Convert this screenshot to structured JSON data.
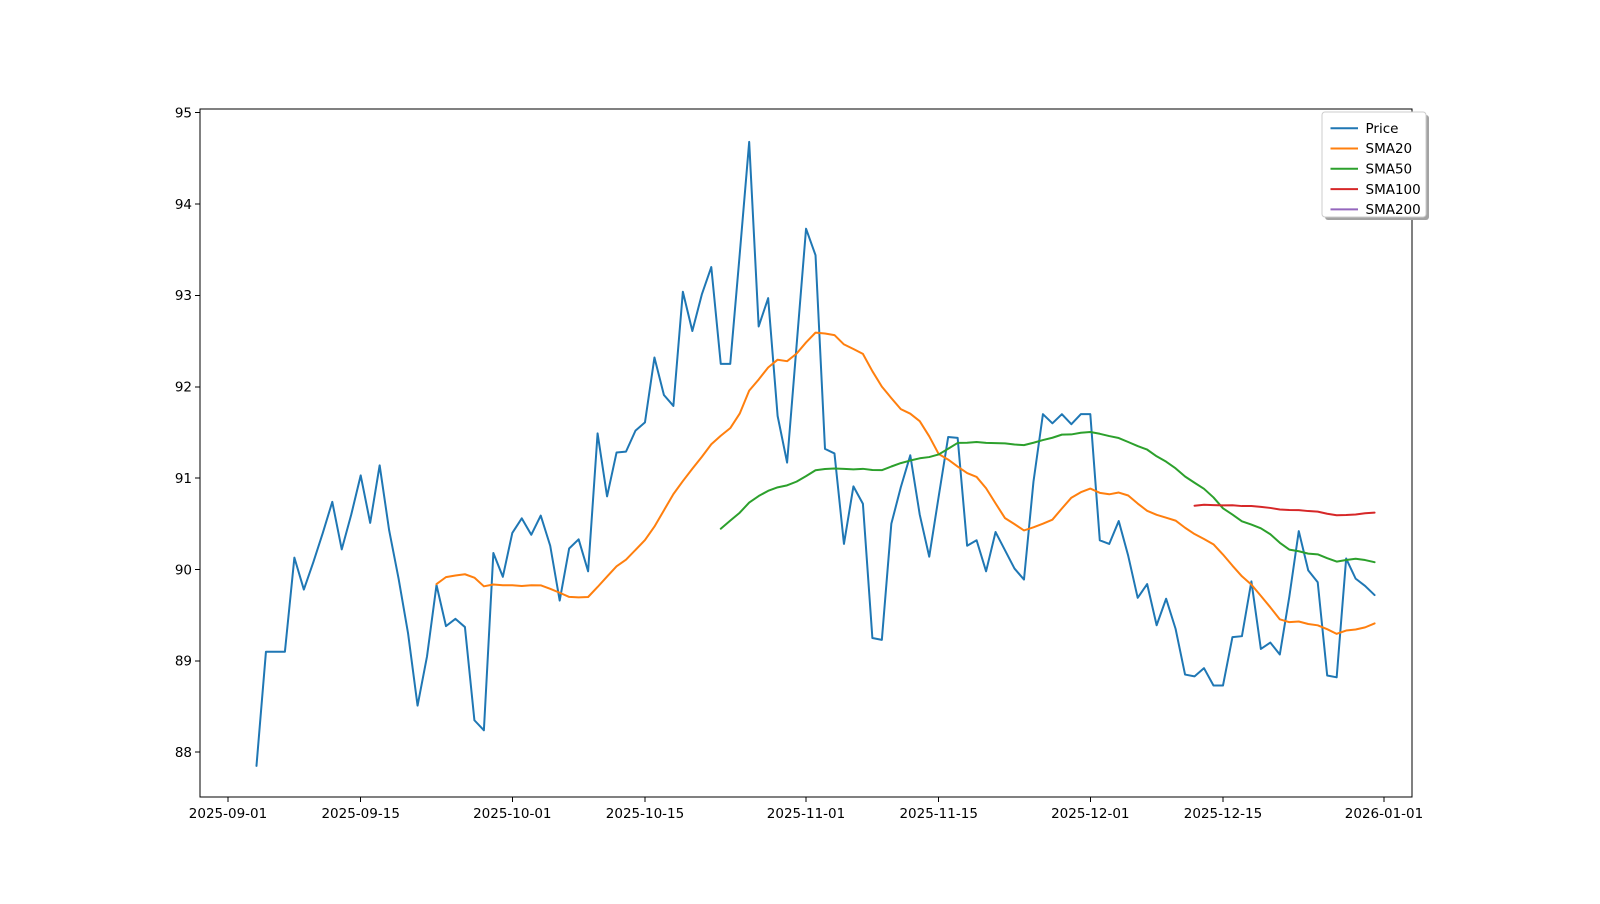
{
  "figure": {
    "background": "#ffffff",
    "axes_edge_color": "#000000",
    "tick_color": "#000000",
    "text_color": "#000000"
  },
  "chart_data": {
    "type": "line",
    "title": "",
    "xlabel": "",
    "ylabel": "",
    "grid": false,
    "legend_position": "upper right",
    "legend_frame_color": "#cccccc",
    "legend_shadow_color": "#a3a3a3",
    "x_start": "2025-09-04",
    "x_end": "2025-12-31",
    "x_freq": "daily",
    "offset_reference": "2025-09-01",
    "xlim_days": [
      -2.96,
      124.95
    ],
    "ylim": [
      87.51,
      95.04
    ],
    "y_ticks": [
      88,
      89,
      90,
      91,
      92,
      93,
      94,
      95
    ],
    "x_tick_labels": [
      "2025-09-01",
      "2025-09-15",
      "2025-10-01",
      "2025-10-15",
      "2025-11-01",
      "2025-11-15",
      "2025-12-01",
      "2025-12-15",
      "2026-01-01"
    ],
    "series": [
      {
        "name": "Price",
        "color": "#1f77b4",
        "values": [
          87.85,
          89.1,
          89.1,
          89.1,
          90.13,
          89.78,
          90.08,
          90.4,
          90.74,
          90.22,
          90.6,
          91.03,
          90.51,
          91.14,
          90.43,
          89.9,
          89.3,
          88.51,
          89.05,
          89.83,
          89.38,
          89.46,
          89.37,
          88.35,
          88.24,
          90.18,
          89.92,
          90.4,
          90.56,
          90.38,
          90.59,
          90.26,
          89.66,
          90.23,
          90.33,
          89.98,
          91.49,
          90.8,
          91.28,
          91.29,
          91.52,
          91.61,
          92.32,
          91.91,
          91.79,
          93.04,
          92.61,
          93.01,
          93.31,
          92.25,
          92.25,
          93.45,
          94.68,
          92.66,
          92.97,
          91.68,
          91.17,
          92.45,
          93.73,
          93.44,
          91.32,
          91.27,
          90.28,
          90.91,
          90.72,
          89.25,
          89.23,
          90.5,
          90.9,
          91.25,
          90.6,
          90.14,
          90.8,
          91.45,
          91.44,
          90.26,
          90.32,
          89.98,
          90.41,
          90.21,
          90.01,
          89.89,
          90.96,
          91.7,
          91.6,
          91.7,
          91.59,
          91.7,
          91.7,
          90.32,
          90.28,
          90.53,
          90.15,
          89.69,
          89.84,
          89.39,
          89.68,
          89.35,
          88.85,
          88.83,
          88.92,
          88.73,
          88.73,
          89.26,
          89.27,
          89.87,
          89.13,
          89.2,
          89.07,
          89.7,
          90.42,
          89.99,
          89.86,
          88.84,
          88.82,
          90.12,
          89.9,
          89.82,
          89.72
        ]
      },
      {
        "name": "SMA20",
        "color": "#ff7f0e",
        "derived": "simple moving average of Price",
        "window": 20
      },
      {
        "name": "SMA50",
        "color": "#2ca02c",
        "derived": "simple moving average of Price",
        "window": 50
      },
      {
        "name": "SMA100",
        "color": "#d62728",
        "derived": "simple moving average of Price",
        "window": 100
      },
      {
        "name": "SMA200",
        "color": "#9467bd",
        "derived": "simple moving average of Price",
        "window": 200,
        "note": "no visible segment (window longer than data)"
      }
    ]
  },
  "legend": {
    "entries": [
      "Price",
      "SMA20",
      "SMA50",
      "SMA100",
      "SMA200"
    ]
  }
}
